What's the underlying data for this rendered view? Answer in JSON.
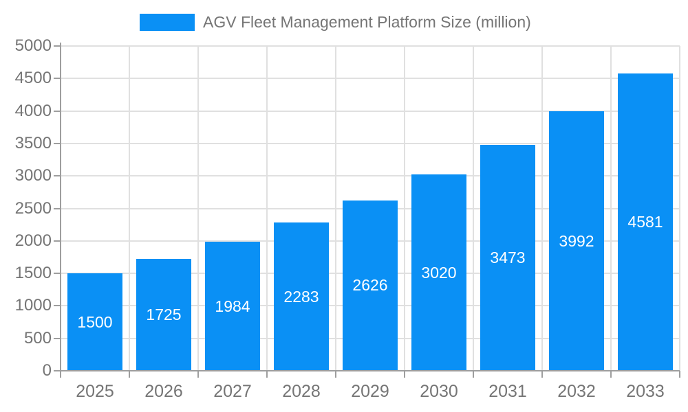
{
  "legend": {
    "label": "AGV Fleet Management Platform Size (million)",
    "swatch_color": "#0A90F5"
  },
  "chart_data": {
    "type": "bar",
    "title": "AGV Fleet Management Platform Size (million)",
    "categories": [
      "2025",
      "2026",
      "2027",
      "2028",
      "2029",
      "2030",
      "2031",
      "2032",
      "2033"
    ],
    "values": [
      1500,
      1725,
      1984,
      2283,
      2626,
      3020,
      3473,
      3992,
      4581
    ],
    "xlabel": "",
    "ylabel": "",
    "ylim": [
      0,
      5000
    ],
    "yticks": [
      0,
      500,
      1000,
      1500,
      2000,
      2500,
      3000,
      3500,
      4000,
      4500,
      5000
    ],
    "grid": true,
    "legend_position": "top-center",
    "bar_color": "#0A90F5",
    "value_label_color": "#ffffff",
    "grid_color": "#E0E0E0",
    "axis_color": "#9E9E9E",
    "tick_label_color": "#757575",
    "background": "#ffffff"
  }
}
